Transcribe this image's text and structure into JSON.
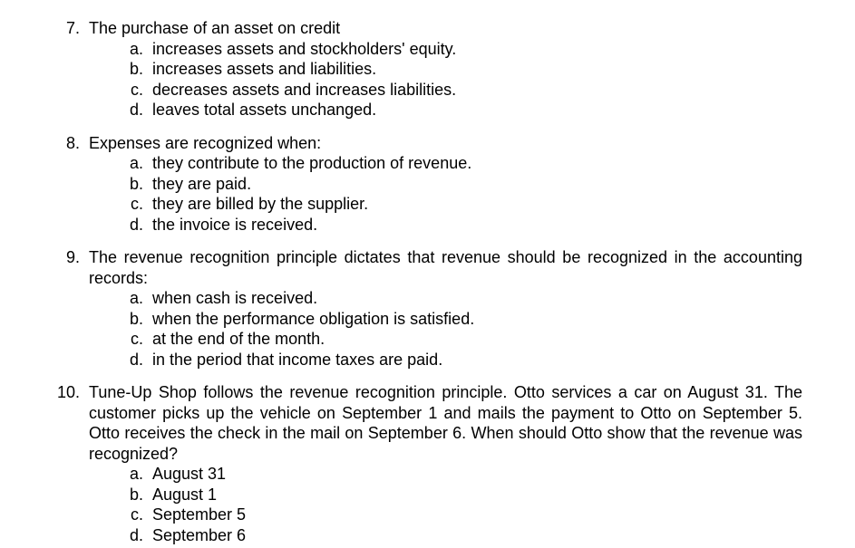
{
  "page": {
    "background_color": "#ffffff",
    "text_color": "#000000",
    "font_family": "Arial",
    "base_fontsize_pt": 14
  },
  "questions": [
    {
      "number": "7.",
      "stem": "The purchase of an asset on credit",
      "justify": false,
      "options": [
        {
          "label": "a.",
          "text": "increases assets and stockholders' equity."
        },
        {
          "label": "b.",
          "text": "increases assets and liabilities."
        },
        {
          "label": "c.",
          "text": "decreases assets and increases liabilities."
        },
        {
          "label": "d.",
          "text": "leaves total assets unchanged."
        }
      ]
    },
    {
      "number": "8.",
      "stem": "Expenses are recognized when:",
      "justify": false,
      "options": [
        {
          "label": "a.",
          "text": "they contribute to the production of revenue."
        },
        {
          "label": "b.",
          "text": "they are paid."
        },
        {
          "label": "c.",
          "text": "they are billed by the supplier."
        },
        {
          "label": "d.",
          "text": "the invoice is received."
        }
      ]
    },
    {
      "number": "9.",
      "stem": "The revenue recognition principle dictates that revenue should be recognized in the accounting records:",
      "justify": true,
      "options": [
        {
          "label": "a.",
          "text": "when cash is received."
        },
        {
          "label": "b.",
          "text": "when the performance obligation is satisfied."
        },
        {
          "label": "c.",
          "text": "at the end of the month."
        },
        {
          "label": "d.",
          "text": "in the period that income taxes are paid."
        }
      ]
    },
    {
      "number": "10.",
      "stem": "Tune-Up Shop follows the revenue recognition principle. Otto services a car on August 31. The customer picks up the vehicle on September 1 and mails the payment to Otto on September 5. Otto receives the check in the mail on September 6. When should Otto show that the revenue was recognized?",
      "justify": true,
      "options": [
        {
          "label": "a.",
          "text": "August 31"
        },
        {
          "label": "b.",
          "text": "August 1"
        },
        {
          "label": "c.",
          "text": "September 5"
        },
        {
          "label": "d.",
          "text": "September 6"
        }
      ]
    }
  ]
}
